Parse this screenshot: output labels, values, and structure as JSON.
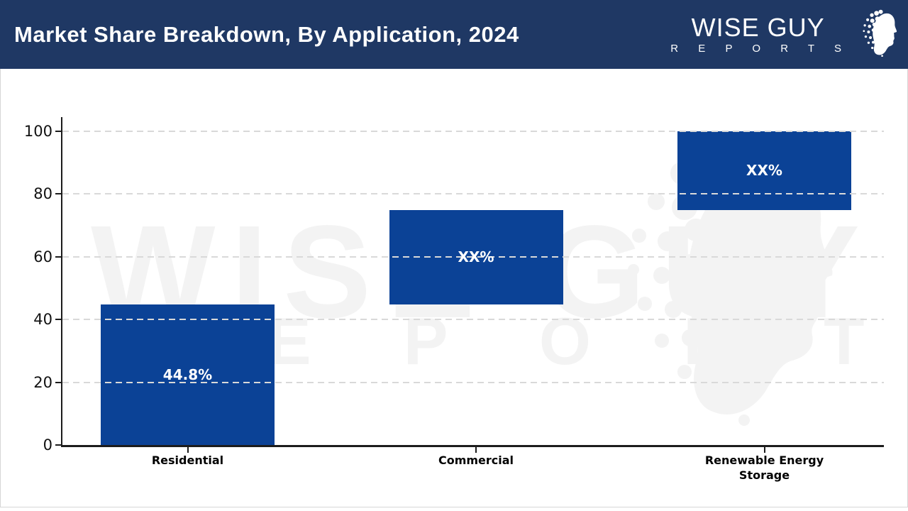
{
  "header": {
    "title": "Market Share Breakdown, By Application, 2024",
    "bg_color": "#1f3864",
    "logo": {
      "line1": "WISE GUY",
      "line2": "REPORTS"
    }
  },
  "watermark": {
    "line1": "WISE GUY",
    "line2": "REPORTS"
  },
  "chart_data": {
    "type": "bar",
    "variant": "floating_waterfall_share",
    "title": "Market Share Breakdown, By Application, 2024",
    "categories": [
      "Residential",
      "Commercial",
      "Renewable Energy Storage"
    ],
    "series": [
      {
        "name": "Market share (%)",
        "segments": [
          {
            "category": "Residential",
            "start": 0,
            "end": 44.8,
            "label": "44.8%"
          },
          {
            "category": "Commercial",
            "start": 44.8,
            "end": 75,
            "label": "XX%"
          },
          {
            "category": "Renewable Energy Storage",
            "start": 75,
            "end": 100,
            "label": "XX%"
          }
        ]
      }
    ],
    "ylim": [
      0,
      100
    ],
    "yticks": [
      0,
      20,
      40,
      60,
      80,
      100
    ],
    "xlabel": "",
    "ylabel": "",
    "grid": "horizontal-dashed",
    "legend": "none",
    "bar_color": "#0b4296",
    "bar_label_color": "#ffffff",
    "axis_color": "#1c1c1c",
    "grid_color": "#d9d9d9"
  }
}
